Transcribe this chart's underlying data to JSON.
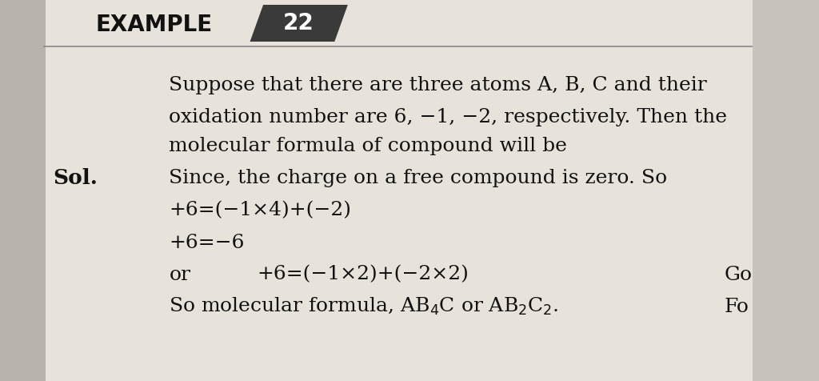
{
  "background_color": "#c8c3bb",
  "page_color": "#e8e3da",
  "header_text": "EXAMPLE",
  "header_number": "22",
  "badge_color": "#3a3a3a",
  "line1": "Suppose that there are three atoms A, B, C and their",
  "line2": "oxidation number are 6, −1, −2, respectively. Then the",
  "line3": "molecular formula of compound will be",
  "sol_label": "Sol.",
  "line4": "Since, the charge on a free compound is zero. So",
  "line5": "+6=(−1×4)+(−2)",
  "line6": "+6=−6",
  "line7_a": "or",
  "line7_b": "+6=(−1×2)+(−2×2)",
  "line8": "So molecular formula, AB$_4$C or AB$_2$C$_2$.",
  "right1": "Go",
  "right2": "Fo",
  "title_fontsize": 20,
  "badge_fontsize": 20,
  "body_fontsize": 18,
  "sol_fontsize": 19
}
